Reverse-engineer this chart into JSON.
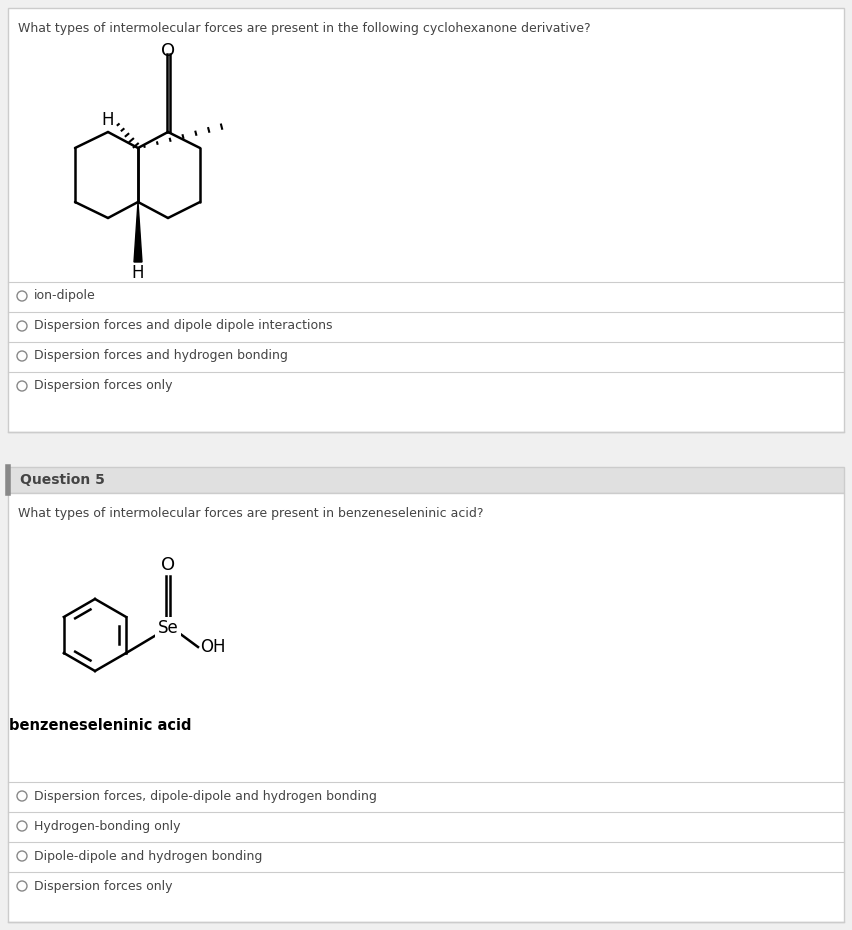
{
  "bg_color": "#f0f0f0",
  "white": "#ffffff",
  "text_color": "#444444",
  "border_color": "#cccccc",
  "line_color": "#cccccc",
  "header_bg": "#e0e0e0",
  "header_border": "#999999",
  "q5_header_text": "Question 5",
  "q1_question": "What types of intermolecular forces are present in the following cyclohexanone derivative?",
  "q5_question": "What types of intermolecular forces are present in benzeneseleninic acid?",
  "q1_options": [
    "ion-dipole",
    "Dispersion forces and dipole dipole interactions",
    "Dispersion forces and hydrogen bonding",
    "Dispersion forces only"
  ],
  "q5_options": [
    "Dispersion forces, dipole-dipole and hydrogen bonding",
    "Hydrogen-bonding only",
    "Dipole-dipole and hydrogen bonding",
    "Dispersion forces only"
  ],
  "benzeneseleninic_label": "benzeneseleninic acid"
}
